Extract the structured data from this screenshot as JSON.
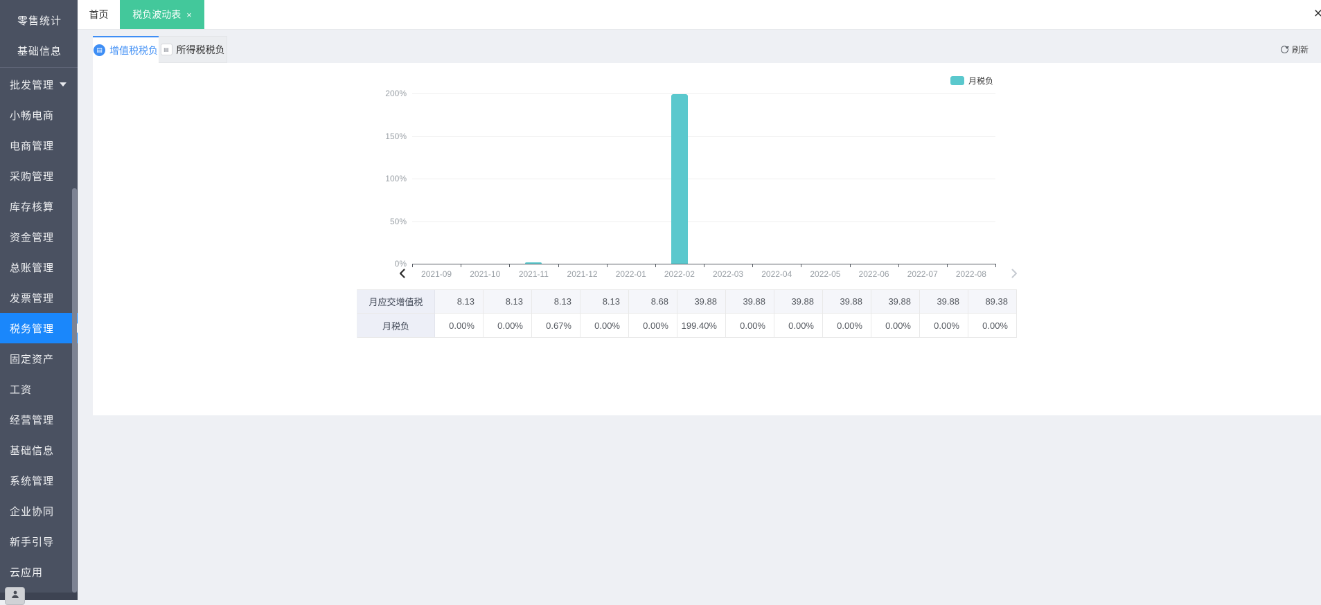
{
  "window": {
    "close_glyph": "×"
  },
  "colors": {
    "sidebar_bg": "#4a5161",
    "active_menu_blue": "#1a87fb",
    "tab_green": "#43c89b",
    "accent_blue": "#3e8ef5",
    "bar_teal": "#5ac8cd"
  },
  "sidebar": {
    "items": [
      {
        "label": "零售统计",
        "indent": true
      },
      {
        "label": "基础信息",
        "indent": true,
        "divider_after": true
      },
      {
        "label": "批发管理",
        "caret": true
      },
      {
        "label": "小畅电商"
      },
      {
        "label": "电商管理"
      },
      {
        "label": "采购管理"
      },
      {
        "label": "库存核算"
      },
      {
        "label": "资金管理"
      },
      {
        "label": "总账管理"
      },
      {
        "label": "发票管理"
      },
      {
        "label": "税务管理",
        "active": true
      },
      {
        "label": "固定资产"
      },
      {
        "label": "工资"
      },
      {
        "label": "经营管理"
      },
      {
        "label": "基础信息"
      },
      {
        "label": "系统管理"
      },
      {
        "label": "企业协同"
      },
      {
        "label": "新手引导"
      },
      {
        "label": "云应用"
      }
    ],
    "icons": {
      "dropdown": "triangle-down",
      "active_pointer": "triangle-left",
      "assistant": "person-icon"
    }
  },
  "tabs": {
    "home_label": "首页",
    "active_label": "税负波动表",
    "close_glyph": "×"
  },
  "subtabs": [
    {
      "label": "增值税税负",
      "active": true,
      "icon": "vat-invoice-circle-icon"
    },
    {
      "label": "所得税税负",
      "active": false,
      "icon": "income-tax-card-icon"
    }
  ],
  "toolbar": {
    "refresh_label": "刷新",
    "refresh_icon": "circular-arrow"
  },
  "pagination": {
    "prev_icon": "chevron-left",
    "next_icon": "chevron-right"
  },
  "chart_data": {
    "type": "bar",
    "title": "",
    "categories": [
      "2021-09",
      "2021-10",
      "2021-11",
      "2021-12",
      "2022-01",
      "2022-02",
      "2022-03",
      "2022-04",
      "2022-05",
      "2022-06",
      "2022-07",
      "2022-08"
    ],
    "series": [
      {
        "name": "月税负",
        "values": [
          0,
          0,
          0.67,
          0,
          0,
          199.4,
          0,
          0,
          0,
          0,
          0,
          0
        ],
        "unit": "%",
        "color": "#5ac8cd"
      }
    ],
    "xlabel": "",
    "ylabel": "",
    "ylim": [
      0,
      200
    ],
    "y_ticks": [
      "0%",
      "50%",
      "100%",
      "150%",
      "200%"
    ],
    "grid": true,
    "legend_position": "top-right"
  },
  "table": {
    "rows": [
      {
        "label": "月应交增值税",
        "values": [
          "8.13",
          "8.13",
          "8.13",
          "8.13",
          "8.68",
          "39.88",
          "39.88",
          "39.88",
          "39.88",
          "39.88",
          "39.88",
          "89.38"
        ]
      },
      {
        "label": "月税负",
        "values": [
          "0.00%",
          "0.00%",
          "0.67%",
          "0.00%",
          "0.00%",
          "199.40%",
          "0.00%",
          "0.00%",
          "0.00%",
          "0.00%",
          "0.00%",
          "0.00%"
        ]
      }
    ]
  }
}
